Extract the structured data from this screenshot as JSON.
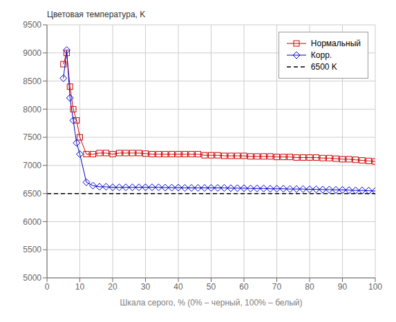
{
  "chart_data": {
    "type": "line",
    "x_label": "Шкала серого, % (0% – черный, 100% – белый)",
    "y_label": "Цветовая температура, K",
    "x": [
      5,
      6,
      7,
      8,
      9,
      10,
      12,
      14,
      16,
      18,
      20,
      22,
      24,
      26,
      28,
      30,
      32,
      34,
      36,
      38,
      40,
      42,
      44,
      46,
      48,
      50,
      52,
      54,
      56,
      58,
      60,
      62,
      64,
      66,
      68,
      70,
      72,
      74,
      76,
      78,
      80,
      82,
      84,
      86,
      88,
      90,
      92,
      94,
      96,
      98,
      100
    ],
    "series": [
      {
        "name": "Нормальный",
        "color": "#cc0000",
        "marker": "square",
        "line_style": "solid",
        "values": [
          8800,
          9000,
          8400,
          8000,
          7800,
          7500,
          7200,
          7200,
          7220,
          7220,
          7200,
          7220,
          7220,
          7220,
          7220,
          7210,
          7200,
          7200,
          7200,
          7200,
          7200,
          7200,
          7200,
          7200,
          7180,
          7180,
          7180,
          7170,
          7170,
          7170,
          7170,
          7160,
          7160,
          7160,
          7160,
          7150,
          7150,
          7150,
          7140,
          7140,
          7140,
          7140,
          7130,
          7130,
          7120,
          7110,
          7110,
          7100,
          7090,
          7080,
          7070
        ]
      },
      {
        "name": "Корр.",
        "color": "#0000cc",
        "marker": "diamond",
        "line_style": "solid",
        "values": [
          8550,
          9050,
          8200,
          7800,
          7400,
          7200,
          6700,
          6640,
          6620,
          6620,
          6610,
          6610,
          6610,
          6610,
          6610,
          6610,
          6610,
          6610,
          6605,
          6605,
          6605,
          6600,
          6600,
          6600,
          6600,
          6600,
          6600,
          6600,
          6595,
          6595,
          6595,
          6590,
          6590,
          6590,
          6585,
          6585,
          6585,
          6580,
          6580,
          6580,
          6575,
          6575,
          6570,
          6570,
          6565,
          6565,
          6560,
          6555,
          6555,
          6550,
          6545
        ]
      }
    ],
    "ref_line": {
      "name": "6500 K",
      "value": 6500,
      "color": "#000000",
      "line_style": "dashed"
    },
    "xlim": [
      0,
      100
    ],
    "ylim": [
      5000,
      9500
    ],
    "xticks": [
      0,
      10,
      20,
      30,
      40,
      50,
      60,
      70,
      80,
      90,
      100
    ],
    "yticks": [
      5000,
      5500,
      6000,
      6500,
      7000,
      7500,
      8000,
      8500,
      9000,
      9500
    ],
    "grid": true,
    "legend": "upper right"
  }
}
